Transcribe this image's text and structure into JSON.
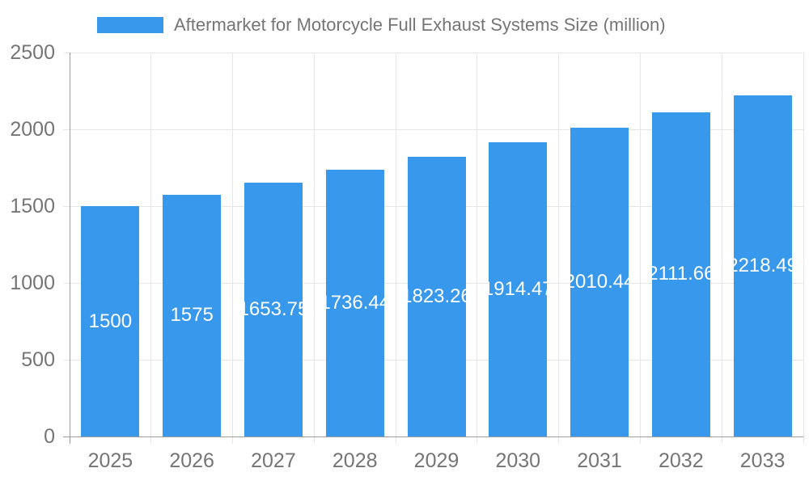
{
  "chart_data": {
    "type": "bar",
    "title": "Aftermarket for Motorcycle Full Exhaust Systems Size (million)",
    "series": [
      {
        "name": "Aftermarket for Motorcycle Full Exhaust Systems Size (million)",
        "values": [
          1500,
          1575,
          1653.75,
          1736.44,
          1823.26,
          1914.47,
          2010.44,
          2111.66,
          2218.49
        ]
      }
    ],
    "categories": [
      "2025",
      "2026",
      "2027",
      "2028",
      "2029",
      "2030",
      "2031",
      "2032",
      "2033"
    ],
    "bar_labels": [
      "1500",
      "1575",
      "1653.75",
      "1736.44",
      "1823.26",
      "1914.47",
      "2010.44",
      "2111.66",
      "2218.49"
    ],
    "xlabel": "",
    "ylabel": "",
    "ylim": [
      0,
      2500
    ],
    "yticks": [
      0,
      500,
      1000,
      1500,
      2000,
      2500
    ],
    "grid": true,
    "legend_position": "top-left",
    "colors": {
      "bar": "#3898ec",
      "bar_label_text": "#ffffff",
      "axis_text": "#757575",
      "gridline": "#e6e6e6",
      "axis_line": "#9e9e9e",
      "background": "#ffffff"
    }
  }
}
